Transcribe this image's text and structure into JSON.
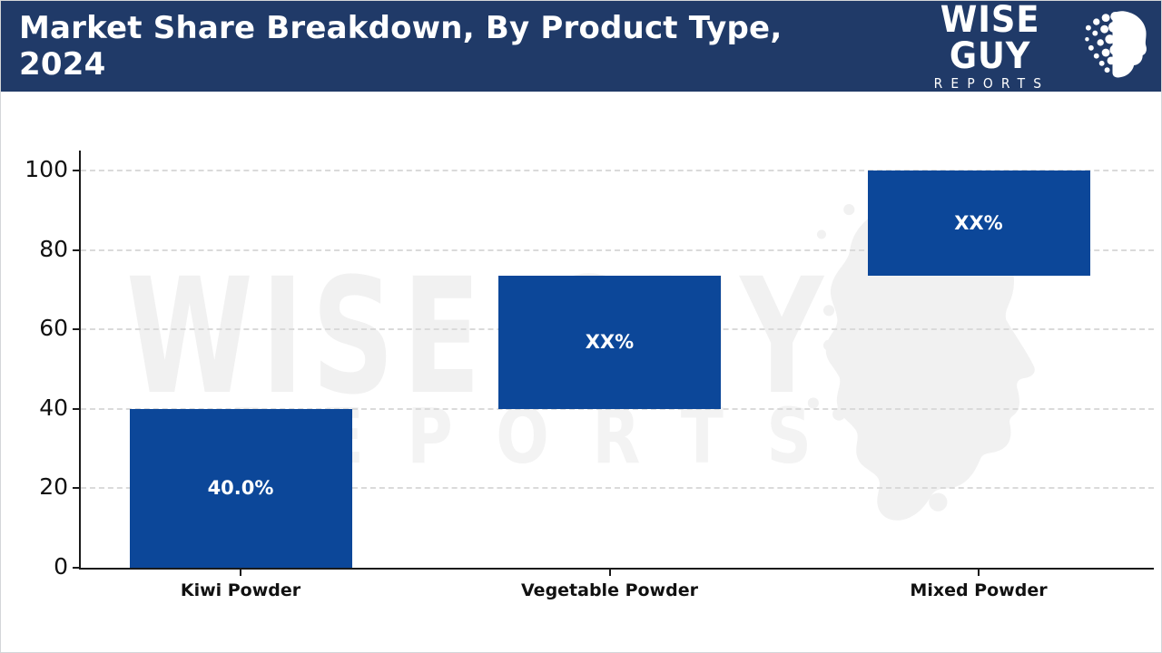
{
  "header": {
    "title": "Market Share Breakdown, By Product Type, 2024",
    "logo": {
      "line1": "WISE GUY",
      "line2": "REPORTS"
    }
  },
  "watermark": {
    "line1": "WISE GUY",
    "line2": "REPORTS"
  },
  "chart_data": {
    "type": "bar",
    "variant": "stacked-waterfall",
    "title": "Market Share Breakdown, By Product Type, 2024",
    "categories": [
      "Kiwi Powder",
      "Vegetable Powder",
      "Mixed Powder"
    ],
    "segments": [
      {
        "category": "Kiwi Powder",
        "start": 0,
        "end": 40,
        "label": "40.0%"
      },
      {
        "category": "Vegetable Powder",
        "start": 40,
        "end": 73.5,
        "label": "XX%"
      },
      {
        "category": "Mixed Powder",
        "start": 73.5,
        "end": 100,
        "label": "XX%"
      }
    ],
    "xlabel": "",
    "ylabel": "",
    "yticks": [
      0,
      20,
      40,
      60,
      80,
      100
    ],
    "ylim": [
      0,
      105
    ],
    "grid": {
      "axis": "y",
      "style": "dashed",
      "color": "#dadada"
    },
    "legend": "none",
    "bar_color": "#0c4799",
    "bar_label_color": "#ffffff",
    "axis_color": "#1a1a1a",
    "tick_label_color": "#111111",
    "header_color": "#203a68",
    "watermark_color": "#f1f1f1"
  }
}
